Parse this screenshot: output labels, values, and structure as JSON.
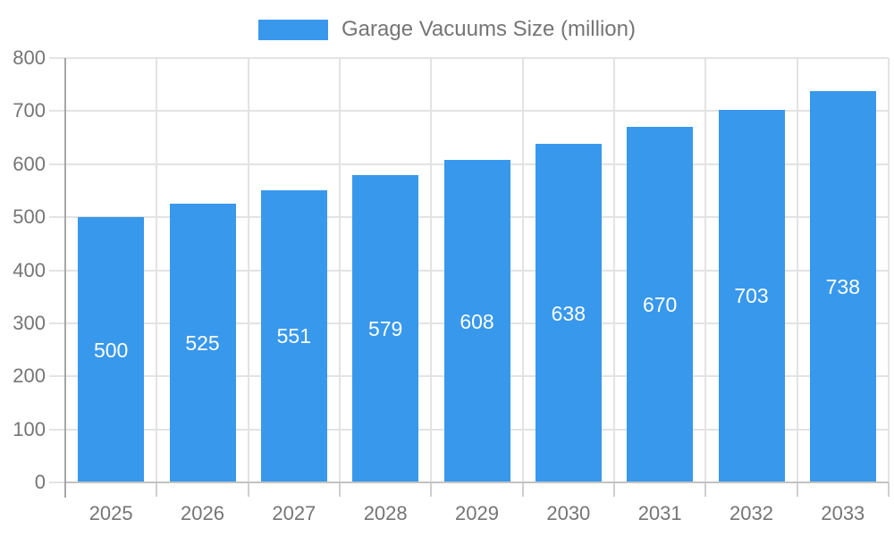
{
  "legend": {
    "label": "Garage Vacuums Size (million)"
  },
  "chart_data": {
    "type": "bar",
    "title": "Garage Vacuums Size (million)",
    "categories": [
      "2025",
      "2026",
      "2027",
      "2028",
      "2029",
      "2030",
      "2031",
      "2032",
      "2033"
    ],
    "values": [
      500,
      525,
      551,
      579,
      608,
      638,
      670,
      703,
      738
    ],
    "xlabel": "",
    "ylabel": "",
    "ylim": [
      0,
      800
    ],
    "yticks": [
      0,
      100,
      200,
      300,
      400,
      500,
      600,
      700,
      800
    ],
    "grid": true,
    "legend_position": "top-center",
    "value_label_position": "inside-middle",
    "colors": {
      "bar": "#3898EC",
      "axis_text": "#757575",
      "grid_line": "#e3e3e3",
      "y_axis_line": "#a6a6a6",
      "x_axis_line": "#c2c2c2",
      "tick_line": "#cfcfcf",
      "value_label": "#ffffff",
      "background": "#ffffff"
    }
  }
}
